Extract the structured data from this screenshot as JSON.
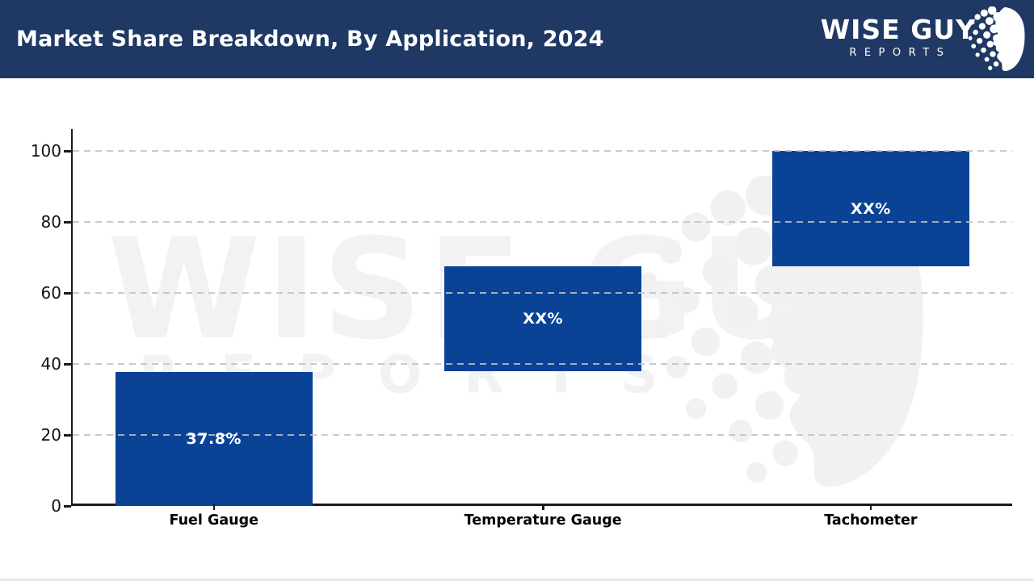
{
  "header": {
    "title": "Market Share Breakdown, By Application, 2024",
    "bg_color": "#1f3864",
    "logo": {
      "line1": "WISE GUY",
      "line2": "REPORTS"
    }
  },
  "watermark": {
    "line1": "WISE GUY",
    "line2": "REPORTS"
  },
  "chart_data": {
    "type": "bar",
    "subtype": "floating-waterfall",
    "title": "Market Share Breakdown, By Application, 2024",
    "categories": [
      "Fuel Gauge",
      "Temperature Gauge",
      "Tachometer"
    ],
    "bars": [
      {
        "category": "Fuel Gauge",
        "start": 0,
        "end": 37.8,
        "label": "37.8%"
      },
      {
        "category": "Temperature Gauge",
        "start": 37.9,
        "end": 67.5,
        "label": "XX%"
      },
      {
        "category": "Tachometer",
        "start": 67.5,
        "end": 100,
        "label": "XX%"
      }
    ],
    "bar_color": "#0a4396",
    "bar_label_color": "#ffffff",
    "xlabel": "",
    "ylabel": "",
    "ylim": [
      0,
      100
    ],
    "yticks": [
      0,
      20,
      40,
      60,
      80,
      100
    ],
    "grid": "horizontal dashed, drawn above bars",
    "legend": "none"
  }
}
